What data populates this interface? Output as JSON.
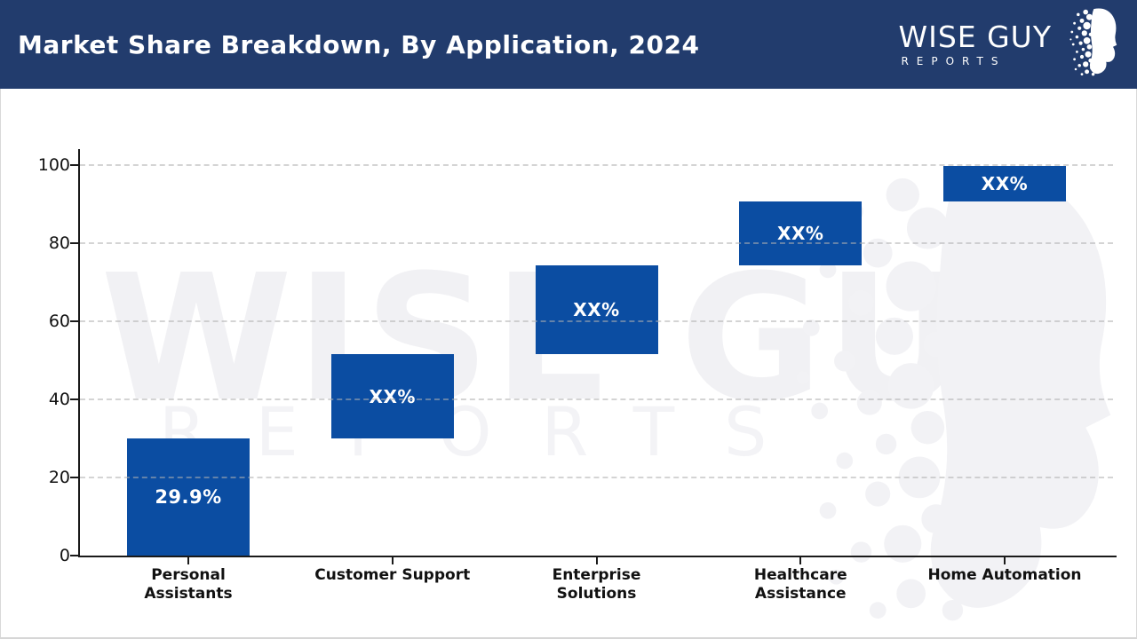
{
  "header": {
    "title": "Market Share Breakdown, By Application, 2024",
    "bg_color": "#223c6d",
    "logo": {
      "name": "WISE GUY",
      "tagline": "REPORTS"
    }
  },
  "watermark": {
    "line1": "WISE GUY",
    "line2": "REPORTS"
  },
  "chart_data": {
    "type": "bar",
    "subtype": "waterfall",
    "title": "Market Share Breakdown, By Application, 2024",
    "categories": [
      [
        "Personal",
        "Assistants"
      ],
      [
        "Customer Support"
      ],
      [
        "Enterprise",
        "Solutions"
      ],
      [
        "Healthcare",
        "Assistance"
      ],
      [
        "Home Automation"
      ]
    ],
    "segments": [
      {
        "category": "Personal Assistants",
        "label": "29.9%",
        "start": 0,
        "end": 29.9
      },
      {
        "category": "Customer Support",
        "label": "XX%",
        "start": 29.9,
        "end": 51.5
      },
      {
        "category": "Enterprise Solutions",
        "label": "XX%",
        "start": 51.5,
        "end": 74.3
      },
      {
        "category": "Healthcare Assistance",
        "label": "XX%",
        "start": 74.3,
        "end": 90.7
      },
      {
        "category": "Home Automation",
        "label": "XX%",
        "start": 90.7,
        "end": 99.8
      }
    ],
    "yticks": [
      0,
      20,
      40,
      60,
      80,
      100
    ],
    "ylim": [
      0,
      104
    ],
    "grid": "dashed-horizontal",
    "legend": false,
    "bar_color": "#0b4da2",
    "value_label_color": "#ffffff",
    "axis_color": "#1a1a1a"
  }
}
